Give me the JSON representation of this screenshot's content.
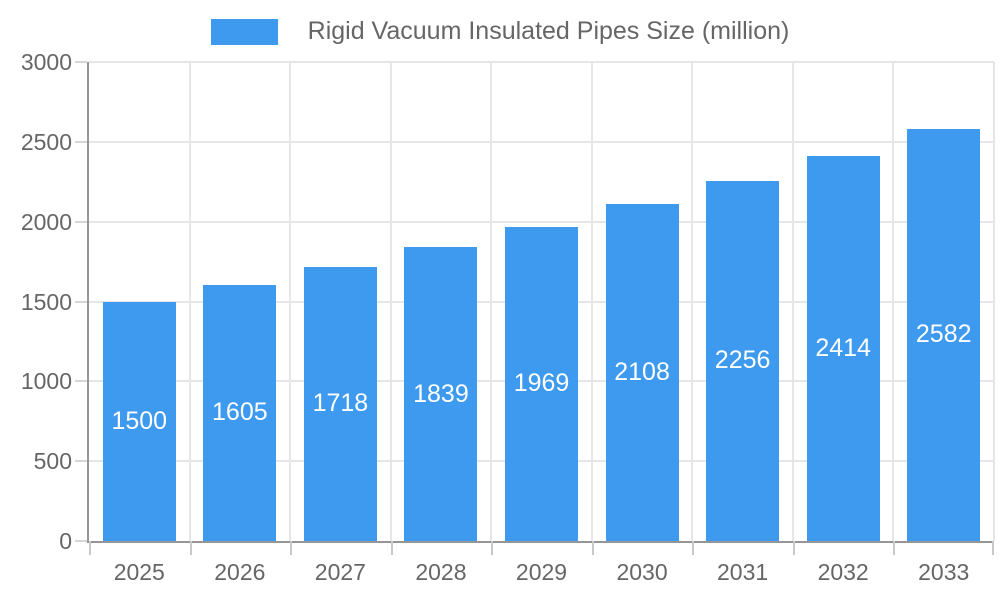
{
  "legend": {
    "label": "Rigid Vacuum Insulated Pipes Size (million)"
  },
  "colors": {
    "bar": "#3E9AEE",
    "grid": "#e6e6e6",
    "axis": "#969696",
    "tick": "#c9c9c9",
    "text": "#666666",
    "value_label": "#ffffff"
  },
  "chart_data": {
    "type": "bar",
    "title": "Rigid Vacuum Insulated Pipes Size (million)",
    "categories": [
      "2025",
      "2026",
      "2027",
      "2028",
      "2029",
      "2030",
      "2031",
      "2032",
      "2033"
    ],
    "values": [
      1500,
      1605,
      1718,
      1839,
      1969,
      2108,
      2256,
      2414,
      2582
    ],
    "value_labels": [
      "1500",
      "1605",
      "1718",
      "1839",
      "1969",
      "2108",
      "2256",
      "2414",
      "2582"
    ],
    "xlabel": "",
    "ylabel": "",
    "ylim": [
      0,
      3000
    ],
    "yticks": [
      0,
      500,
      1000,
      1500,
      2000,
      2500,
      3000
    ],
    "grid": true,
    "legend_position": "top",
    "legend_entries": [
      "Rigid Vacuum Insulated Pipes Size (million)"
    ]
  }
}
